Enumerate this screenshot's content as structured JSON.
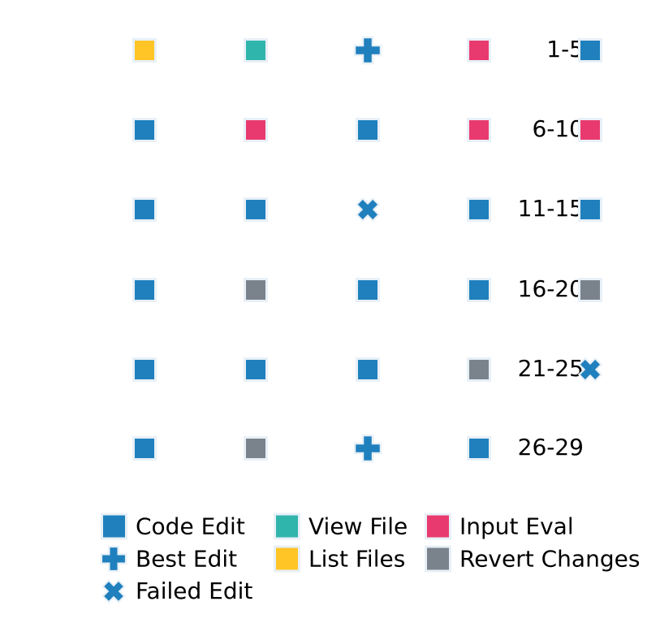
{
  "chart_data": {
    "type": "scatter",
    "title": "",
    "description": "Grid of action markers per step range with categorical legend",
    "row_labels": [
      "1-5",
      "6-10",
      "11-15",
      "16-20",
      "21-25",
      "26-29"
    ],
    "marker_types": {
      "code_edit": {
        "label": "Code Edit",
        "shape": "square",
        "color": "#1f80bd"
      },
      "view_file": {
        "label": "View File",
        "shape": "square",
        "color": "#30b5ac"
      },
      "input_eval": {
        "label": "Input Eval",
        "shape": "square",
        "color": "#e93a6f"
      },
      "best_edit": {
        "label": "Best Edit",
        "shape": "plus",
        "color": "#1f80bd"
      },
      "list_files": {
        "label": "List Files",
        "shape": "square",
        "color": "#ffc526"
      },
      "revert_changes": {
        "label": "Revert Changes",
        "shape": "square",
        "color": "#7a828c"
      },
      "failed_edit": {
        "label": "Failed Edit",
        "shape": "x",
        "color": "#1f80bd"
      }
    },
    "grid": [
      [
        "list_files",
        "view_file",
        "best_edit",
        "input_eval",
        "code_edit"
      ],
      [
        "code_edit",
        "input_eval",
        "code_edit",
        "input_eval",
        "input_eval"
      ],
      [
        "code_edit",
        "code_edit",
        "failed_edit",
        "code_edit",
        "code_edit"
      ],
      [
        "code_edit",
        "revert_changes",
        "code_edit",
        "code_edit",
        "revert_changes"
      ],
      [
        "code_edit",
        "code_edit",
        "code_edit",
        "revert_changes",
        "failed_edit"
      ],
      [
        "code_edit",
        "revert_changes",
        "best_edit",
        "code_edit"
      ]
    ],
    "legend": {
      "columns": [
        [
          "code_edit",
          "best_edit",
          "failed_edit"
        ],
        [
          "view_file",
          "list_files"
        ],
        [
          "input_eval",
          "revert_changes"
        ]
      ]
    },
    "layout_hints": {
      "legend_position": "bottom",
      "grid": "off",
      "marker_edge_color": "#e8f0f7",
      "background": "#ffffff"
    }
  }
}
